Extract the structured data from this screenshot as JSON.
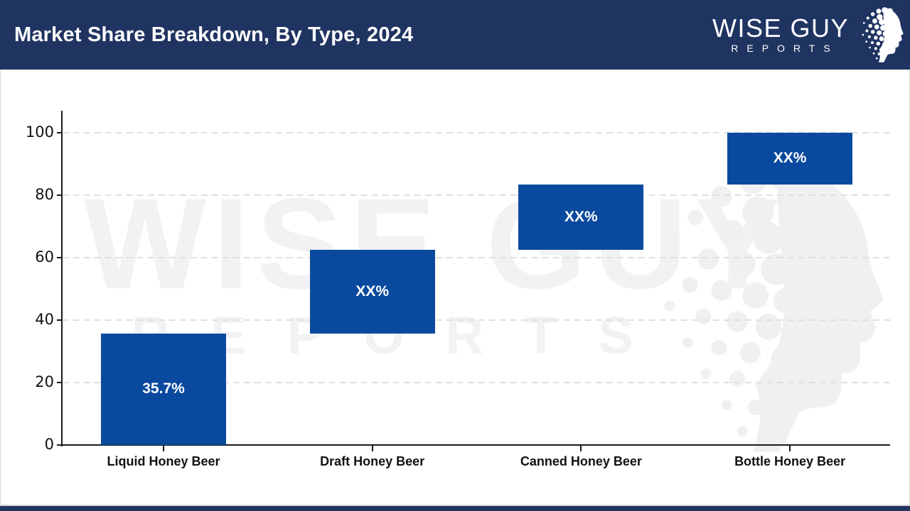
{
  "header": {
    "title": "Market Share Breakdown, By Type, 2024",
    "bg_color": "#203462",
    "logo": {
      "line1": "WISE GUY",
      "line2": "REPORTS"
    }
  },
  "watermark": {
    "line1": "WISE GUY",
    "line2": "REPORTS"
  },
  "footer": {
    "bar_color": "#203462"
  },
  "chart_data": {
    "type": "bar",
    "subtype": "waterfall",
    "title": "Market Share Breakdown, By Type, 2024",
    "categories": [
      "Liquid Honey Beer",
      "Draft Honey Beer",
      "Canned Honey Beer",
      "Bottle Honey Beer"
    ],
    "segments": [
      {
        "category": "Liquid Honey Beer",
        "start": 0,
        "end": 35.7,
        "label": "35.7%"
      },
      {
        "category": "Draft Honey Beer",
        "start": 35.7,
        "end": 62.5,
        "label": "XX%"
      },
      {
        "category": "Canned Honey Beer",
        "start": 62.5,
        "end": 83.5,
        "label": "XX%"
      },
      {
        "category": "Bottle Honey Beer",
        "start": 83.5,
        "end": 100,
        "label": "XX%"
      }
    ],
    "yticks": [
      0,
      20,
      40,
      60,
      80,
      100
    ],
    "ylim": [
      0,
      107
    ],
    "xlabel": "",
    "ylabel": "",
    "grid": "horizontal-dashed",
    "legend": "none",
    "bar_color": "#0a4a9e",
    "bar_label_color": "#ffffff"
  }
}
